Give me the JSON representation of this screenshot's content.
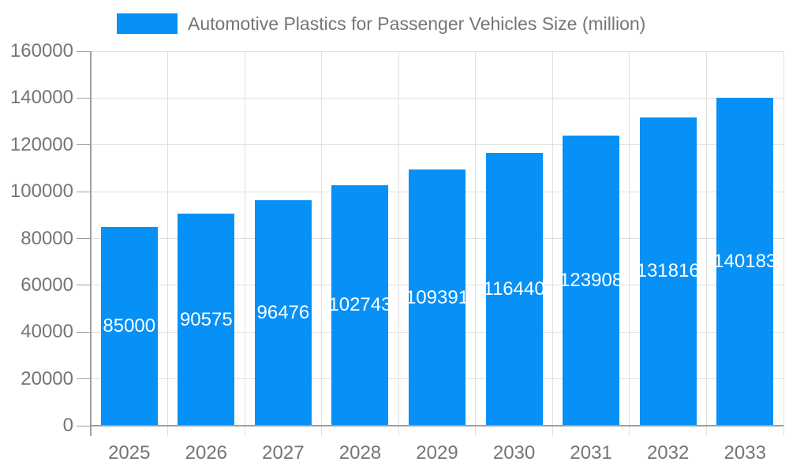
{
  "legend": {
    "label": "Automotive Plastics for Passenger Vehicles Size (million)"
  },
  "colors": {
    "bar": "#0790f6",
    "tick_text": "#757575",
    "title_text": "#757575",
    "grid": "#e0e0e0",
    "axis": "#9e9e9e",
    "value_text": "#ffffff",
    "background": "#ffffff"
  },
  "chart_data": {
    "type": "bar",
    "title": "Automotive Plastics for Passenger Vehicles Size (million)",
    "categories": [
      "2025",
      "2026",
      "2027",
      "2028",
      "2029",
      "2030",
      "2031",
      "2032",
      "2033"
    ],
    "series": [
      {
        "name": "Automotive Plastics for Passenger Vehicles Size (million)",
        "values": [
          85000,
          90575,
          96476,
          102743,
          109391,
          116440,
          123908,
          131816,
          140183
        ]
      }
    ],
    "value_labels": [
      "85000",
      "90575",
      "96476",
      "102743",
      "109391",
      "116440",
      "123908",
      "131816",
      "140183"
    ],
    "xlabel": "",
    "ylabel": "",
    "ylim": [
      0,
      160000
    ],
    "y_tick_step": 20000,
    "y_tick_labels": [
      "0",
      "20000",
      "40000",
      "60000",
      "80000",
      "100000",
      "120000",
      "140000",
      "160000"
    ],
    "grid": "horizontal and vertical, light gray",
    "legend_position": "top",
    "value_label_position": "inside-middle-white"
  }
}
